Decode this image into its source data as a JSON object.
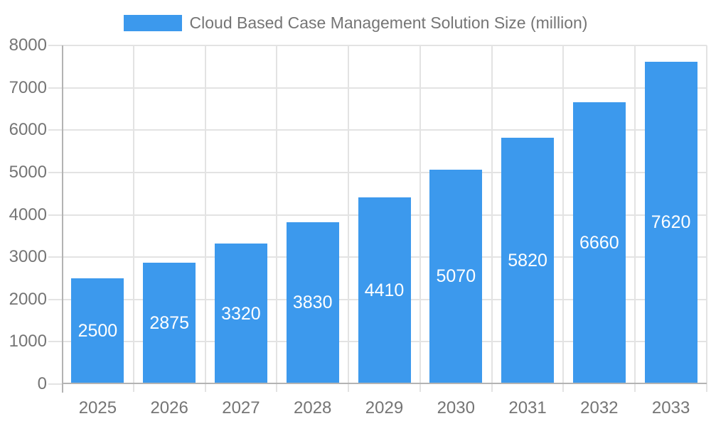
{
  "colors": {
    "bar": "#3c99ed",
    "grid": "#e3e3e3",
    "axis": "#b3b3b3",
    "tick": "#e3e3e3",
    "text": "#757575",
    "bar_label": "#ffffff",
    "background": "#ffffff"
  },
  "chart_data": {
    "type": "bar",
    "legend": [
      "Cloud Based Case Management Solution Size (million)"
    ],
    "legend_position": "top",
    "categories": [
      "2025",
      "2026",
      "2027",
      "2028",
      "2029",
      "2030",
      "2031",
      "2032",
      "2033"
    ],
    "values": [
      2500,
      2875,
      3320,
      3830,
      4410,
      5070,
      5820,
      6660,
      7620
    ],
    "xlabel": "",
    "ylabel": "",
    "ylim": [
      0,
      8000
    ],
    "yticks": [
      0,
      1000,
      2000,
      3000,
      4000,
      5000,
      6000,
      7000,
      8000
    ],
    "grid": true,
    "data_labels": {
      "position": "inside-center",
      "color": "#ffffff"
    }
  }
}
